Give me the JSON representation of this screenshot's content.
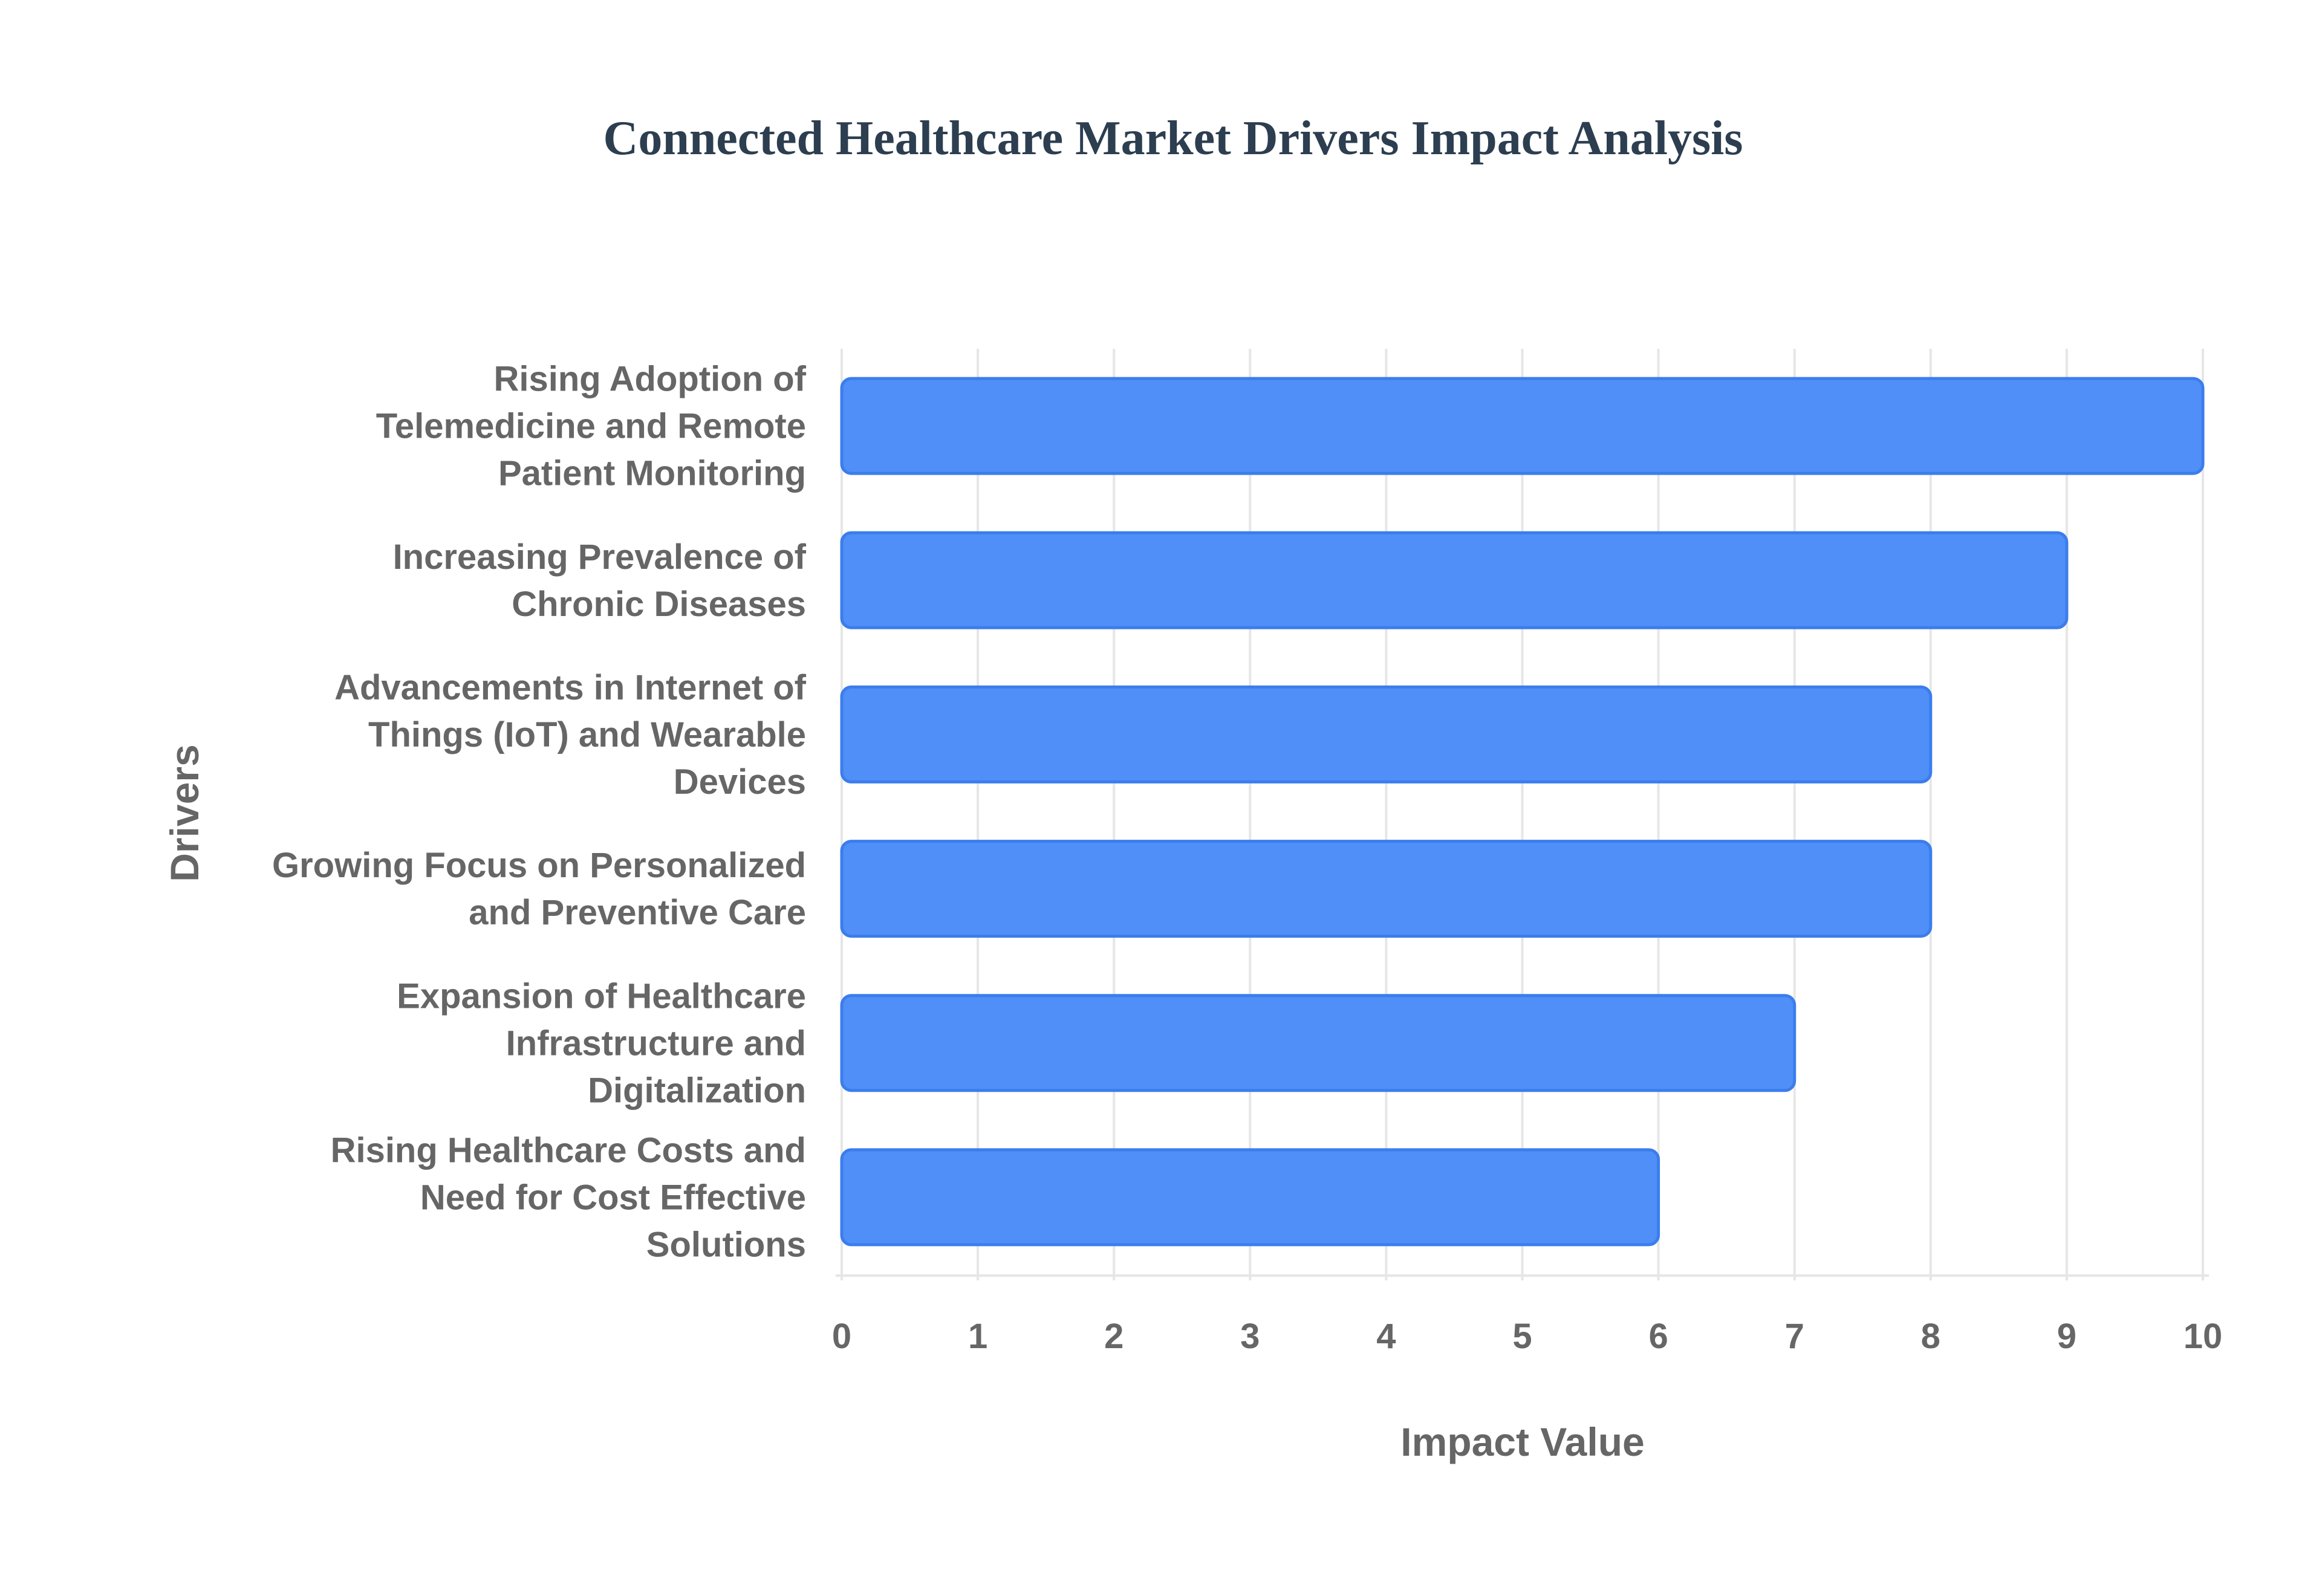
{
  "chart_data": {
    "type": "bar",
    "orientation": "horizontal",
    "title": "Connected Healthcare Market Drivers Impact Analysis",
    "xlabel": "Impact Value",
    "ylabel": "Drivers",
    "xlim": [
      0,
      10
    ],
    "x_ticks": [
      "0",
      "1",
      "2",
      "3",
      "4",
      "5",
      "6",
      "7",
      "8",
      "9",
      "10"
    ],
    "grid": true,
    "categories": [
      [
        "Rising Adoption of",
        "Telemedicine and Remote",
        "Patient Monitoring"
      ],
      [
        "Increasing Prevalence of",
        "Chronic Diseases"
      ],
      [
        "Advancements in Internet of",
        "Things (IoT) and Wearable",
        "Devices"
      ],
      [
        "Growing Focus on Personalized",
        "and Preventive Care"
      ],
      [
        "Expansion of Healthcare",
        "Infrastructure and",
        "Digitalization"
      ],
      [
        "Rising Healthcare Costs and",
        "Need for Cost Effective",
        "Solutions"
      ]
    ],
    "values": [
      10,
      9,
      8,
      8,
      7,
      6
    ],
    "colors": {
      "bar_fill": "#4f8ff7",
      "bar_stroke": "#3b7ded",
      "title": "#2c3e50",
      "text": "#666666",
      "grid": "#e6e6e6"
    }
  }
}
